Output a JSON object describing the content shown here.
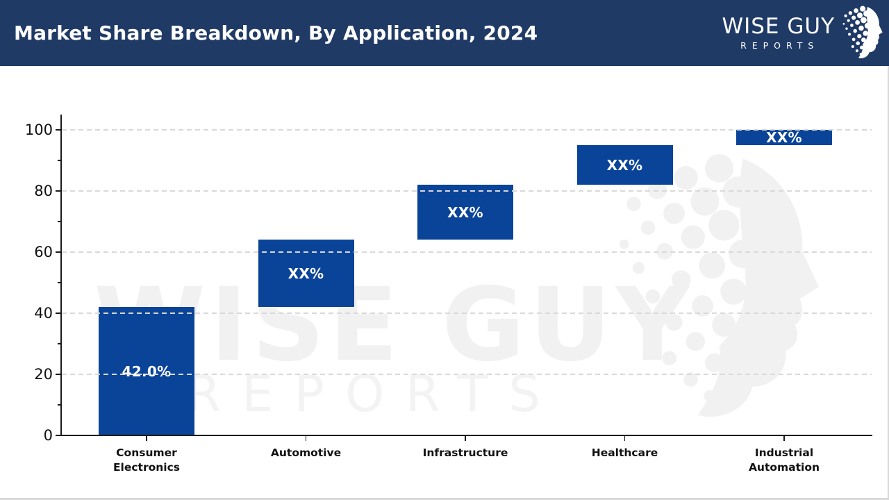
{
  "header": {
    "title": "Market Share Breakdown, By Application, 2024",
    "brand_name": "WISE GUY",
    "brand_sub": "REPORTS"
  },
  "watermark": {
    "line1": "WISE GUY",
    "line2": "REPORTS"
  },
  "colors": {
    "header_bg": "#203a66",
    "bar": "#0a4499",
    "grid": "#d9d9d9",
    "axis": "#1a1a1a",
    "bar_label": "#ffffff",
    "watermark": "#f1f1f1"
  },
  "chart_data": {
    "type": "bar",
    "subtype": "waterfall",
    "title": "Market Share Breakdown, By Application, 2024",
    "xlabel": "",
    "ylabel": "",
    "ylim": [
      0,
      105
    ],
    "yticks": [
      0,
      20,
      40,
      60,
      80,
      100
    ],
    "grid": "horizontal-dashed",
    "legend": "none",
    "categories": [
      "Consumer Electronics",
      "Automotive",
      "Infrastructure",
      "Healthcare",
      "Industrial Automation"
    ],
    "tick_label_lines": [
      [
        "Consumer",
        "Electronics"
      ],
      [
        "Automotive"
      ],
      [
        "Infrastructure"
      ],
      [
        "Healthcare"
      ],
      [
        "Industrial",
        "Automation"
      ]
    ],
    "segments": [
      {
        "category": "Consumer Electronics",
        "start": 0,
        "end": 42,
        "value": 42,
        "label": "42.0%"
      },
      {
        "category": "Automotive",
        "start": 42,
        "end": 64,
        "value": 22,
        "label": "XX%"
      },
      {
        "category": "Infrastructure",
        "start": 64,
        "end": 82,
        "value": 18,
        "label": "XX%"
      },
      {
        "category": "Healthcare",
        "start": 82,
        "end": 95,
        "value": 13,
        "label": "XX%"
      },
      {
        "category": "Industrial Automation",
        "start": 95,
        "end": 100,
        "value": 5,
        "label": "XX%"
      }
    ]
  }
}
